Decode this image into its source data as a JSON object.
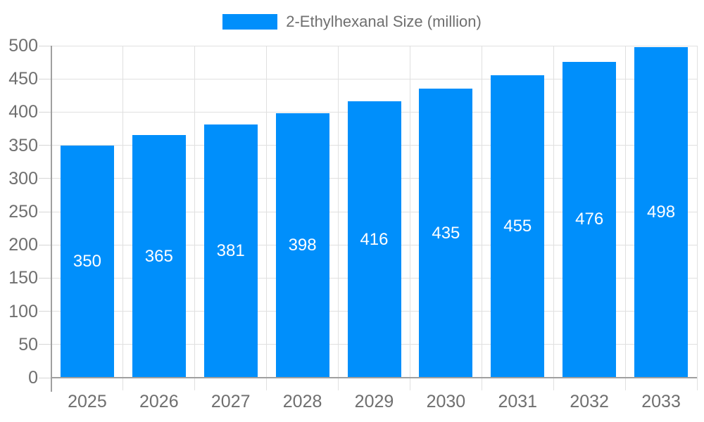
{
  "legend": {
    "label": "2-Ethylhexanal Size (million)"
  },
  "chart_data": {
    "type": "bar",
    "title": "2-Ethylhexanal Size (million)",
    "categories": [
      "2025",
      "2026",
      "2027",
      "2028",
      "2029",
      "2030",
      "2031",
      "2032",
      "2033"
    ],
    "values": [
      350,
      365,
      381,
      398,
      416,
      435,
      455,
      476,
      498
    ],
    "xlabel": "",
    "ylabel": "",
    "ylim": [
      0,
      500
    ],
    "ytick_step": 50,
    "ytick_labels": [
      "0",
      "50",
      "100",
      "150",
      "200",
      "250",
      "300",
      "350",
      "400",
      "450",
      "500"
    ],
    "grid": true,
    "legend_position": "top",
    "bar_color": "#008FFB",
    "value_label_color": "#ffffff",
    "axis_label_color": "#6f6f6f",
    "grid_color": "#e0e0e0",
    "axis_line_color": "#a0a0a0"
  }
}
